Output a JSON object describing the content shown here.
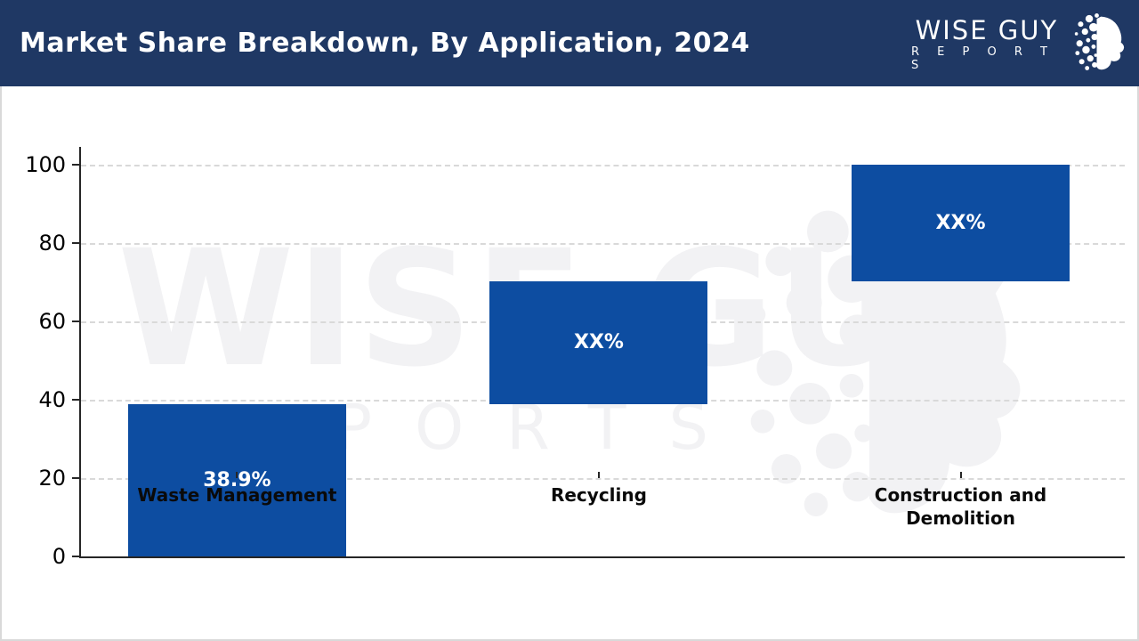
{
  "header": {
    "title": "Market Share Breakdown, By Application, 2024",
    "bg_color": "#1f3864",
    "logo": {
      "line1": "WISE GUY",
      "line2": "R E P O R T S"
    }
  },
  "watermark": {
    "line1": "WISE GUY",
    "line2": "REPORTS"
  },
  "chart_data": {
    "type": "bar",
    "subtype": "floating-waterfall",
    "title": "Market Share Breakdown, By Application, 2024",
    "categories": [
      "Waste Management",
      "Recycling",
      "Construction and Demolition"
    ],
    "series": [
      {
        "name": "Waste Management",
        "range": [
          0,
          38.9
        ],
        "label": "38.9%"
      },
      {
        "name": "Recycling",
        "range": [
          38.9,
          70.3
        ],
        "label": "XX%"
      },
      {
        "name": "Construction and Demolition",
        "range": [
          70.3,
          100
        ],
        "label": "XX%"
      }
    ],
    "ylim": [
      0,
      100
    ],
    "yticks": [
      0,
      20,
      40,
      60,
      80,
      100
    ],
    "grid": "dashed-horizontal",
    "legend": "none",
    "bar_color": "#0d4da1",
    "value_label_color": "#ffffff",
    "axis_color": "#262626"
  }
}
